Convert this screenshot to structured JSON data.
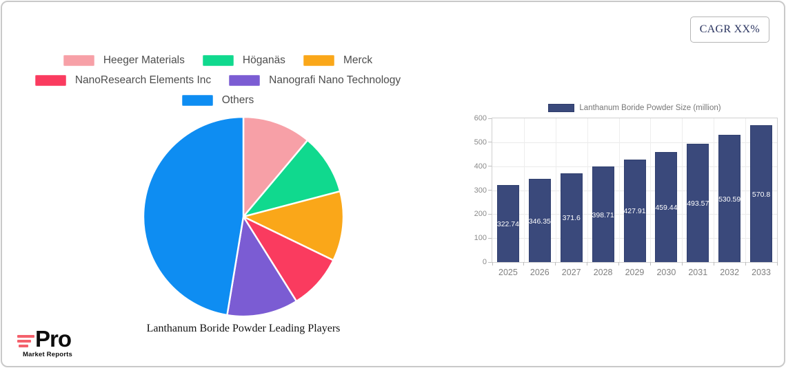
{
  "cagr_box": {
    "label": "CAGR XX%"
  },
  "logo": {
    "title": "Pro",
    "subtitle": "Market Reports",
    "bar_color": "#F4616C"
  },
  "chart_data": [
    {
      "type": "pie",
      "title": "Lanthanum Boride Powder Leading Players",
      "labels": [
        "Heeger Materials",
        "Höganäs",
        "Merck",
        "NanoResearch Elements Inc",
        "Nanografi Nano Technology",
        "Others"
      ],
      "values_pct": [
        11.1,
        9.8,
        11.3,
        8.9,
        11.5,
        47.4
      ],
      "colors": [
        "#F7A0A7",
        "#10D98E",
        "#FAA719",
        "#FA3B5F",
        "#7B5CD3",
        "#0E8DF2"
      ],
      "start_angle_deg": 0,
      "legend_rows": [
        [
          0,
          1,
          2
        ],
        [
          3,
          4
        ],
        [
          5
        ]
      ],
      "legend_position": "top",
      "slice_border_color": "#ffffff"
    },
    {
      "type": "bar",
      "legend": "Lanthanum Boride Powder Size (million)",
      "categories": [
        "2025",
        "2026",
        "2027",
        "2028",
        "2029",
        "2030",
        "2031",
        "2032",
        "2033"
      ],
      "values": [
        322.74,
        346.35,
        371.6,
        398.71,
        427.91,
        459.44,
        493.57,
        530.59,
        570.8
      ],
      "value_labels": [
        "322.74",
        "346.35",
        "371.6",
        "398.71",
        "427.91",
        "459.44",
        "493.57",
        "530.59",
        "570.8"
      ],
      "bar_color": "#3A497B",
      "value_label_color": "#ffffff",
      "ylim": [
        0,
        600
      ],
      "yticks": [
        0,
        100,
        200,
        300,
        400,
        500,
        600
      ],
      "grid": true,
      "legend_position": "top"
    }
  ]
}
